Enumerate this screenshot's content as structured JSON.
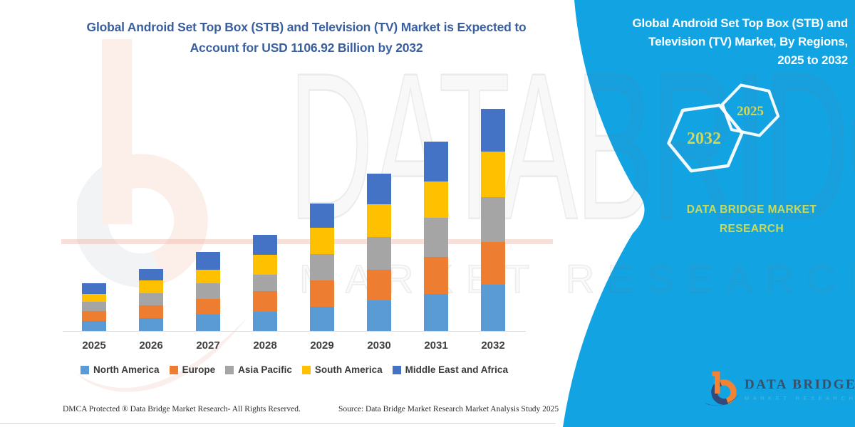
{
  "header": {
    "title_line1": "Global Android Set Top Box (STB) and Television (TV) Market is Expected to",
    "title_line2": "Account for USD 1106.92 Billion by 2032"
  },
  "chart_data": {
    "type": "bar",
    "stacked": true,
    "title": "Global Android Set Top Box (STB) and Television (TV) Market is Expected to Account for USD 1106.92 Billion by 2032",
    "unit": "USD Billion (estimated from bar heights; no y-axis shown)",
    "categories": [
      "2025",
      "2026",
      "2027",
      "2028",
      "2029",
      "2030",
      "2031",
      "2032"
    ],
    "series": [
      {
        "name": "North America",
        "color": "#5B9BD5",
        "values": [
          50,
          64,
          82,
          95,
          121,
          153,
          185,
          230
        ]
      },
      {
        "name": "Europe",
        "color": "#ED7D31",
        "values": [
          50,
          65,
          77,
          103,
          131,
          153,
          185,
          215
        ]
      },
      {
        "name": "Asia Pacific",
        "color": "#A5A5A5",
        "values": [
          45,
          61,
          78,
          83,
          131,
          163,
          195,
          222
        ]
      },
      {
        "name": "South America",
        "color": "#FFC000",
        "values": [
          41,
          61,
          70,
          98,
          131,
          163,
          181,
          228
        ]
      },
      {
        "name": "Middle East and Africa",
        "color": "#4472C4",
        "values": [
          51,
          58,
          87,
          100,
          121,
          153,
          199,
          211.92
        ]
      }
    ],
    "totals": [
      237,
      309,
      394,
      479,
      635,
      785,
      945,
      1106.92
    ],
    "ylim": [
      0,
      1200
    ],
    "grid": false,
    "legend_position": "bottom"
  },
  "footer": {
    "left": "DMCA Protected ® Data Bridge Market Research-  All Rights Reserved.",
    "source": "Source: Data Bridge Market Research  Market Analysis Study 2025"
  },
  "right_panel": {
    "title_line1": "Global Android Set Top Box (STB) and",
    "title_line2": "Television (TV) Market, By Regions,",
    "title_line3": "2025 to 2032",
    "hexagon_back_label": "2032",
    "hexagon_front_label": "2025",
    "brand_line1": "DATA BRIDGE MARKET",
    "brand_line2": "RESEARCH",
    "colors": {
      "background": "#12A3E3",
      "accent_text": "#C9DA5B"
    }
  },
  "logo": {
    "title": "DATA BRIDGE",
    "subtitle": "MARKET RESEARCH"
  },
  "watermark": {
    "big_text": "DATABRIDGE",
    "sub_text": "MARKET RESEARCH"
  }
}
